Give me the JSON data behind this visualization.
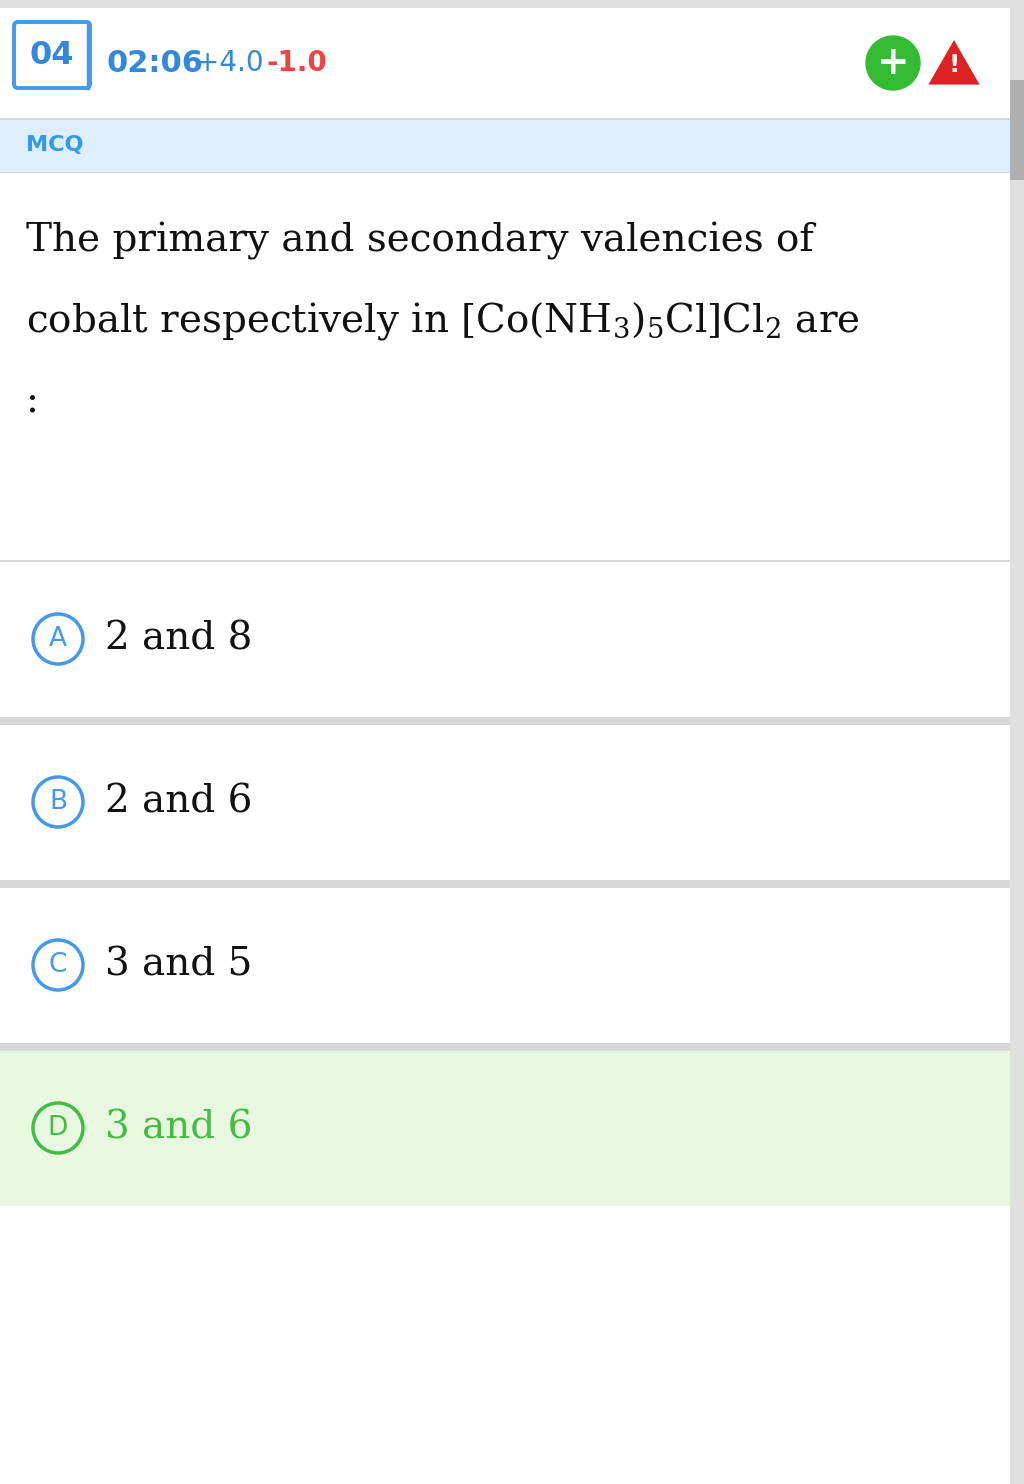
{
  "question_number": "04",
  "time": "02:06",
  "positive_mark": "+4.0",
  "negative_mark": "-1.0",
  "type_label": "MCQ",
  "question_line1": "The primary and secondary valencies of",
  "question_line2_plain": "cobalt respectively in ",
  "question_formula": "[Co(NH$_3$)$_5$Cl]Cl$_2$ are",
  "question_line3": ":",
  "options": [
    {
      "label": "A",
      "text": "2 and 8",
      "correct": false
    },
    {
      "label": "B",
      "text": "2 and 6",
      "correct": false
    },
    {
      "label": "C",
      "text": "3 and 5",
      "correct": false
    },
    {
      "label": "D",
      "text": "3 and 6",
      "correct": true
    }
  ],
  "bg_color": "#ffffff",
  "top_bar_color": "#e0e0e0",
  "mcq_bar_color": "#ddeeff",
  "option_bg_normal": "#ffffff",
  "option_bg_correct": "#e8f8e0",
  "separator_color": "#d8d8d8",
  "box_border_color": "#4499ee",
  "number_color": "#3388dd",
  "time_color": "#3388dd",
  "plus_mark_color": "#3388dd",
  "minus_mark_color": "#ee4444",
  "mcq_label_color": "#3399ee",
  "question_text_color": "#111111",
  "option_circle_color_normal": "#4499ee",
  "option_circle_color_correct": "#44bb44",
  "option_text_color_normal": "#111111",
  "option_text_color_correct": "#44bb44",
  "green_circle_color": "#33bb33",
  "red_triangle_color": "#dd2222",
  "scrollbar_bg": "#e0e0e0",
  "scrollbar_fg": "#b0b0b0"
}
